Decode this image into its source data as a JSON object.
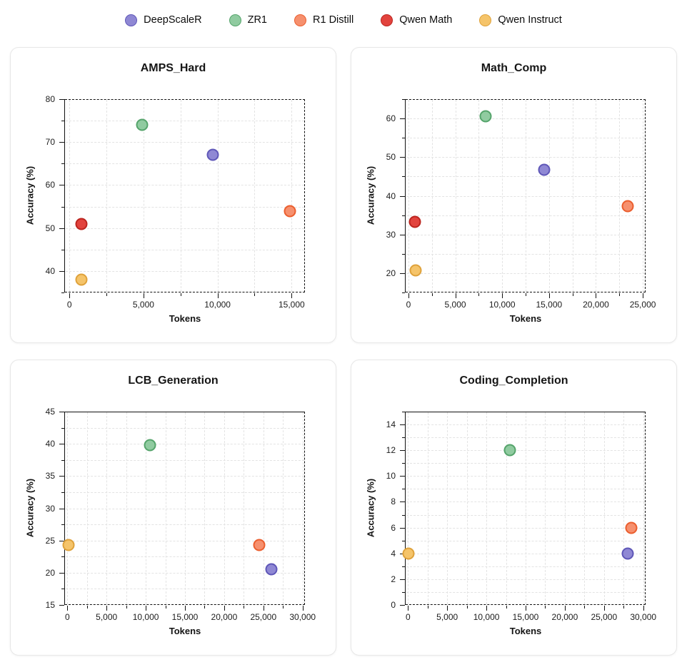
{
  "legend": {
    "items": [
      {
        "label": "DeepScaleR",
        "fill": "#8f88d4",
        "stroke": "#5f57b8"
      },
      {
        "label": "ZR1",
        "fill": "#90cba0",
        "stroke": "#55a46b"
      },
      {
        "label": "R1 Distill",
        "fill": "#f6906e",
        "stroke": "#eb5e2e"
      },
      {
        "label": "Qwen Math",
        "fill": "#e2433d",
        "stroke": "#bc251f"
      },
      {
        "label": "Qwen Instruct",
        "fill": "#f5c46a",
        "stroke": "#dfa23b"
      }
    ]
  },
  "chart_data": [
    {
      "type": "scatter",
      "title": "AMPS_Hard",
      "xlabel": "Tokens",
      "ylabel": "Accuracy (%)",
      "xlim": [
        -300,
        15900
      ],
      "ylim": [
        35,
        80
      ],
      "xticks": [
        0,
        5000,
        10000,
        15000
      ],
      "yticks": [
        40,
        50,
        60,
        70,
        80
      ],
      "x_minor": 2500,
      "y_minor": 5,
      "grid": true,
      "top_border": "dashed",
      "points": [
        {
          "series": "ZR1",
          "x": 4900,
          "y": 74
        },
        {
          "series": "DeepScaleR",
          "x": 9700,
          "y": 67
        },
        {
          "series": "R1 Distill",
          "x": 14900,
          "y": 54
        },
        {
          "series": "Qwen Math",
          "x": 800,
          "y": 51
        },
        {
          "series": "Qwen Instruct",
          "x": 800,
          "y": 38
        }
      ]
    },
    {
      "type": "scatter",
      "title": "Math_Comp",
      "xlabel": "Tokens",
      "ylabel": "Accuracy (%)",
      "xlim": [
        -300,
        25300
      ],
      "ylim": [
        15,
        65
      ],
      "xticks": [
        0,
        5000,
        10000,
        15000,
        20000,
        25000
      ],
      "yticks": [
        20,
        30,
        40,
        50,
        60
      ],
      "x_minor": 2500,
      "y_minor": 5,
      "grid": true,
      "top_border": "dashed",
      "points": [
        {
          "series": "ZR1",
          "x": 8200,
          "y": 60.5
        },
        {
          "series": "DeepScaleR",
          "x": 14500,
          "y": 46.7
        },
        {
          "series": "R1 Distill",
          "x": 23400,
          "y": 37.3
        },
        {
          "series": "Qwen Math",
          "x": 700,
          "y": 33.3
        },
        {
          "series": "Qwen Instruct",
          "x": 800,
          "y": 20.7
        }
      ]
    },
    {
      "type": "scatter",
      "title": "LCB_Generation",
      "xlabel": "Tokens",
      "ylabel": "Accuracy (%)",
      "xlim": [
        -300,
        30300
      ],
      "ylim": [
        15,
        45
      ],
      "xticks": [
        0,
        5000,
        10000,
        15000,
        20000,
        25000,
        30000
      ],
      "yticks": [
        15,
        20,
        25,
        30,
        35,
        40,
        45
      ],
      "x_minor": 2500,
      "y_minor": 2.5,
      "grid": true,
      "top_border": "solid",
      "points": [
        {
          "series": "ZR1",
          "x": 10500,
          "y": 39.8
        },
        {
          "series": "Qwen Instruct",
          "x": 200,
          "y": 24.3
        },
        {
          "series": "R1 Distill",
          "x": 24500,
          "y": 24.3
        },
        {
          "series": "DeepScaleR",
          "x": 26000,
          "y": 20.5
        }
      ]
    },
    {
      "type": "scatter",
      "title": "Coding_Completion",
      "xlabel": "Tokens",
      "ylabel": "Accuracy (%)",
      "xlim": [
        -300,
        30300
      ],
      "ylim": [
        0,
        15
      ],
      "xticks": [
        0,
        5000,
        10000,
        15000,
        20000,
        25000,
        30000
      ],
      "yticks": [
        0,
        2,
        4,
        6,
        8,
        10,
        12,
        14
      ],
      "x_minor": 2500,
      "y_minor": 1,
      "grid": true,
      "top_border": "solid",
      "points": [
        {
          "series": "ZR1",
          "x": 13000,
          "y": 12
        },
        {
          "series": "Qwen Instruct",
          "x": 100,
          "y": 4
        },
        {
          "series": "R1 Distill",
          "x": 28500,
          "y": 6
        },
        {
          "series": "DeepScaleR",
          "x": 28000,
          "y": 4
        }
      ]
    }
  ]
}
